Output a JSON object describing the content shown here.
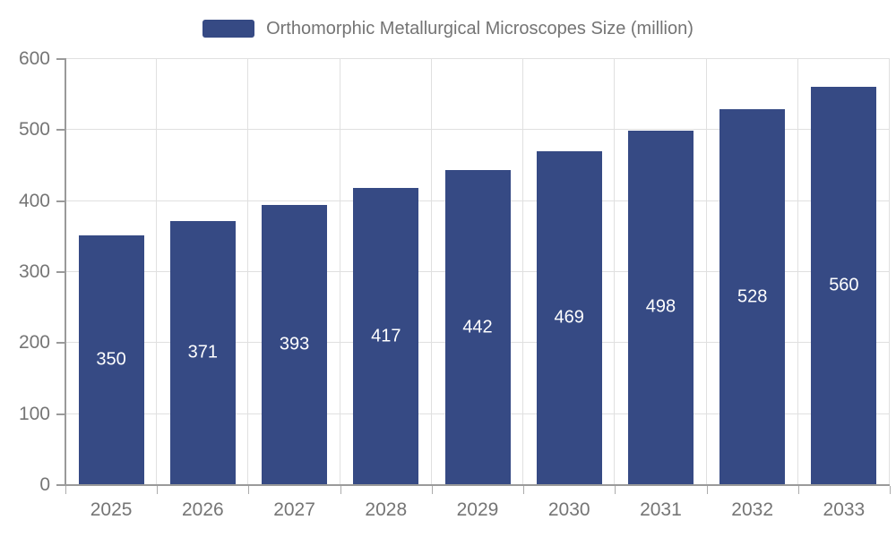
{
  "legend": {
    "label": "Orthomorphic Metallurgical Microscopes Size (million)"
  },
  "chart_data": {
    "type": "bar",
    "title": "Orthomorphic Metallurgical Microscopes Size (million)",
    "categories": [
      "2025",
      "2026",
      "2027",
      "2028",
      "2029",
      "2030",
      "2031",
      "2032",
      "2033"
    ],
    "series": [
      {
        "name": "Orthomorphic Metallurgical Microscopes Size (million)",
        "values": [
          350,
          371,
          393,
          417,
          442,
          469,
          498,
          528,
          560
        ]
      }
    ],
    "values": [
      350,
      371,
      393,
      417,
      442,
      469,
      498,
      528,
      560
    ],
    "bar_labels": [
      "350",
      "371",
      "393",
      "417",
      "442",
      "469",
      "498",
      "528",
      "560"
    ],
    "xlabel": "",
    "ylabel": "",
    "ylim": [
      0,
      600
    ],
    "yticks": [
      0,
      100,
      200,
      300,
      400,
      500,
      600
    ],
    "grid": true,
    "legend_position": "top",
    "colors": {
      "bar": "#364A84",
      "bar_label": "#FFFFFF",
      "grid": "#E0E0E0",
      "axis": "#9A9A9A",
      "x_tick": "#ABABAB",
      "tick_label": "#757575",
      "legend_text": "#747474",
      "background": "#FFFFFF"
    }
  }
}
